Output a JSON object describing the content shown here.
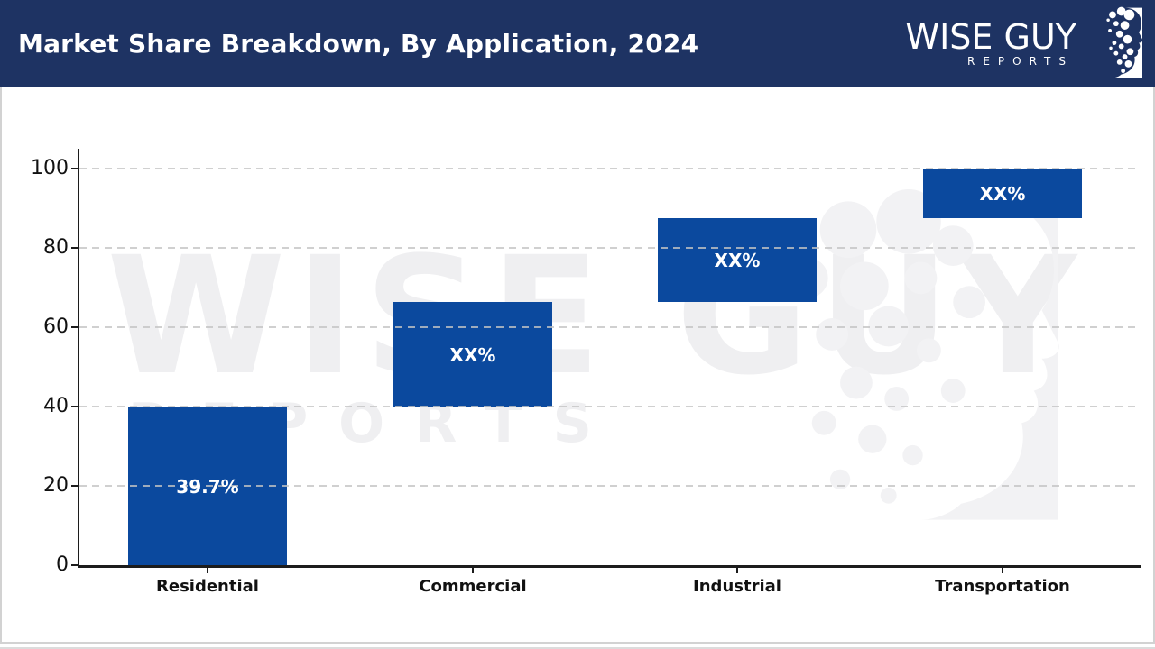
{
  "header": {
    "title": "Market Share Breakdown, By Application, 2024",
    "logo": {
      "line1": "WISE GUY",
      "line2": "REPORTS"
    }
  },
  "watermark": {
    "line1": "WISE GUY",
    "line2": "REPORTS"
  },
  "icons": {
    "logo_head": "dotted-profile-head-icon",
    "watermark_head": "dotted-profile-head-watermark"
  },
  "colors": {
    "header_navy": "#1e3363",
    "bar_blue": "#0b499e",
    "bar_label_white": "#ffffff",
    "axis_black": "#1c1c1c",
    "grid_gray": "#c4c4c4",
    "watermark_gray": "#efeff1",
    "edge_gray": "#d2d2d2"
  },
  "chart_data": {
    "type": "bar",
    "variant": "stepped-stacked-market-share",
    "title": "Market Share Breakdown, By Application, 2024",
    "categories": [
      "Residential",
      "Commercial",
      "Industrial",
      "Transportation"
    ],
    "segments": [
      {
        "category": "Residential",
        "start": 0,
        "end": 39.7,
        "value_label": "39.7%"
      },
      {
        "category": "Commercial",
        "start": 39.7,
        "end": 66.3,
        "value_label": "XX%"
      },
      {
        "category": "Industrial",
        "start": 66.3,
        "end": 87.4,
        "value_label": "XX%"
      },
      {
        "category": "Transportation",
        "start": 87.4,
        "end": 100,
        "value_label": "XX%"
      }
    ],
    "yticks": [
      0,
      20,
      40,
      60,
      80,
      100
    ],
    "ylim": [
      0,
      105
    ],
    "xlabel": "",
    "ylabel": "",
    "grid": "horizontal-dashed-over-bars",
    "legend": "none"
  }
}
